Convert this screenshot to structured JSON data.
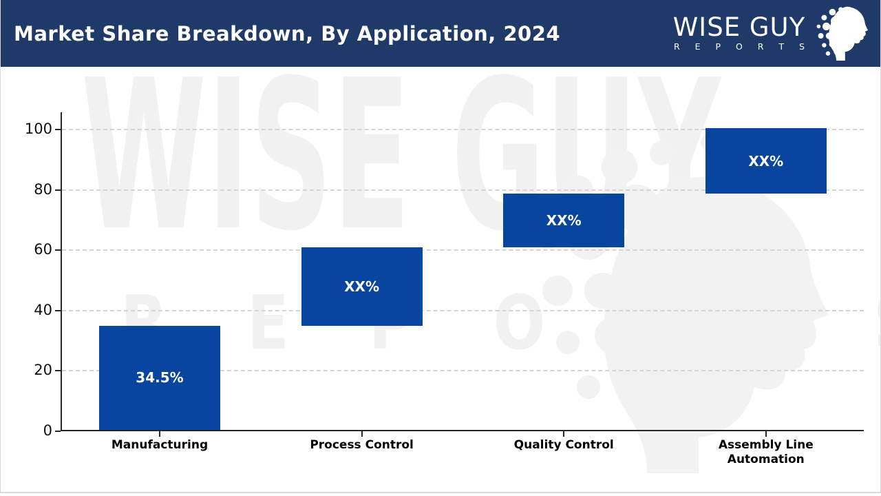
{
  "header": {
    "title": "Market Share Breakdown, By Application, 2024",
    "logo": {
      "line1": "WISE GUY",
      "line2": "R E P O R T S"
    }
  },
  "watermark": {
    "line1": "WISE GUY",
    "line2": "R E P O R T S"
  },
  "colors": {
    "header_bg": "#1f3a68",
    "bar": "#08459e",
    "bar_label": "#ffffff",
    "axis": "#262626",
    "grid": "#d4d4d4",
    "tick_text": "#111111",
    "title_text": "#ffffff",
    "watermark": "#f1f1f1"
  },
  "chart_data": {
    "type": "bar",
    "subtype": "waterfall",
    "title": "Market Share Breakdown, By Application, 2024",
    "categories": [
      "Manufacturing",
      "Process Control",
      "Quality Control",
      "Assembly Line Automation"
    ],
    "series": [
      {
        "name": "Market Share (%)",
        "segments": [
          {
            "category": "Manufacturing",
            "start": 0,
            "end": 34.5,
            "label": "34.5%"
          },
          {
            "category": "Process Control",
            "start": 34.5,
            "end": 60.5,
            "label": "XX%"
          },
          {
            "category": "Quality Control",
            "start": 60.5,
            "end": 78.3,
            "label": "XX%"
          },
          {
            "category": "Assembly Line Automation",
            "start": 78.3,
            "end": 100,
            "label": "XX%"
          }
        ]
      }
    ],
    "xlabel": "",
    "ylabel": "",
    "ylim": [
      0,
      105.7
    ],
    "yticks": [
      0,
      20,
      40,
      60,
      80,
      100
    ],
    "grid": "horizontal-dashed",
    "legend": "none"
  }
}
